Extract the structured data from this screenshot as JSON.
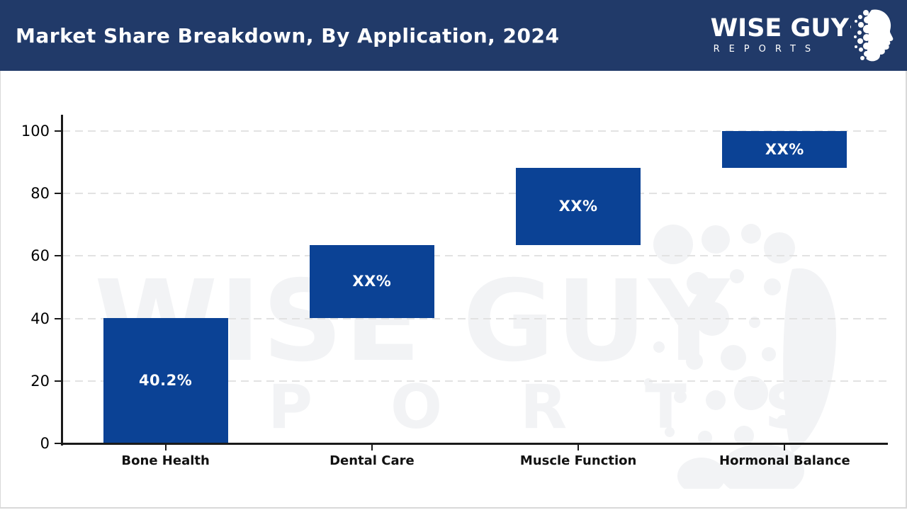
{
  "header": {
    "title": "Market Share Breakdown, By Application, 2024",
    "logo": {
      "name": "WISE GUY",
      "subname": "REPORTS"
    }
  },
  "watermark": {
    "line1": "WISE GUY",
    "line2": "P O R T S"
  },
  "chart_data": {
    "type": "bar",
    "variant": "waterfall-market-share",
    "title": "Market Share Breakdown, By Application, 2024",
    "categories": [
      "Bone Health",
      "Dental Care",
      "Muscle Function",
      "Hormonal Balance"
    ],
    "segments": [
      {
        "category": "Bone Health",
        "from": 0,
        "to": 40.2,
        "label": "40.2%"
      },
      {
        "category": "Dental Care",
        "from": 40.2,
        "to": 63.6,
        "label": "XX%"
      },
      {
        "category": "Muscle Function",
        "from": 63.6,
        "to": 88.2,
        "label": "XX%"
      },
      {
        "category": "Hormonal Balance",
        "from": 88.2,
        "to": 100,
        "label": "XX%"
      }
    ],
    "yticks": [
      0,
      20,
      40,
      60,
      80,
      100
    ],
    "ylim": [
      0,
      105
    ],
    "xlabel": "",
    "ylabel": "",
    "grid": "horizontal-dashed",
    "legend": "none",
    "bar_color": "#0b4295",
    "bar_label_color": "#ffffff"
  },
  "colors": {
    "header_bg": "#213a69",
    "bar": "#0b4295",
    "grid": "#e2e2e2",
    "axis": "#1a1a1a",
    "watermark": "#f2f3f5",
    "border": "#d9d9d9"
  }
}
